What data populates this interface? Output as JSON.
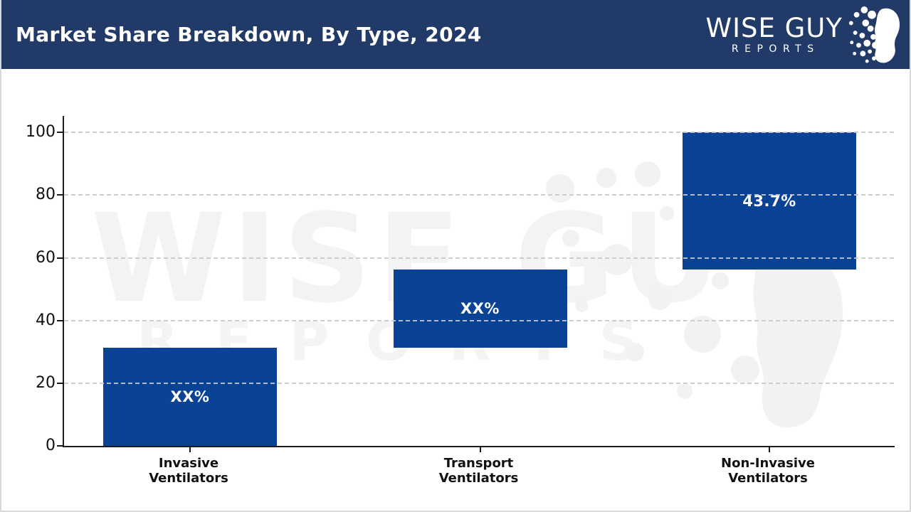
{
  "header": {
    "title": "Market Share Breakdown, By Type, 2024",
    "background": "#223A68",
    "logo": {
      "wordmark": "WISE GUY",
      "subtitle": "REPORTS"
    }
  },
  "watermark": {
    "line1": "WISE GUY",
    "line2": "REPORTS"
  },
  "chart_data": {
    "type": "bar",
    "variant": "waterfall",
    "title": "Market Share Breakdown, By Type, 2024",
    "categories": [
      "Invasive\nVentilators",
      "Transport\nVentilators",
      "Non-Invasive\nVentilators"
    ],
    "series": [
      {
        "name": "Market Share (%)",
        "segments": [
          {
            "category": "Invasive Ventilators",
            "start": 0,
            "end": 31.3,
            "label": "XX%"
          },
          {
            "category": "Transport Ventilators",
            "start": 31.3,
            "end": 56.3,
            "label": "XX%"
          },
          {
            "category": "Non-Invasive Ventilators",
            "start": 56.3,
            "end": 100,
            "label": "43.7%"
          }
        ]
      }
    ],
    "yticks": [
      0,
      20,
      40,
      60,
      80,
      100
    ],
    "ylim": [
      0,
      105.3
    ],
    "xlabel": "",
    "ylabel": "",
    "grid": "horizontal-dashed",
    "legend": "none",
    "colors": {
      "bar": "#0A4296",
      "bar_label": "#FFFFFF",
      "axis": "#1A1A1A",
      "grid": "#C9C9C9",
      "tick_label": "#111111"
    }
  }
}
